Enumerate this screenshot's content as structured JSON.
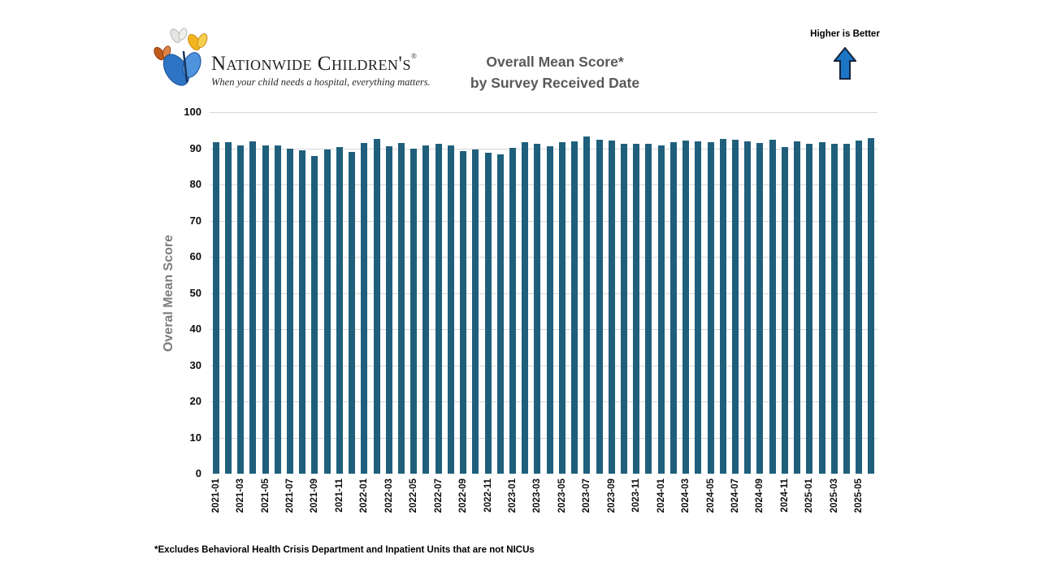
{
  "header": {
    "logo": {
      "brand": "Nationwide Children's",
      "registered_mark": "®",
      "tagline": "When your child needs a hospital, everything matters."
    },
    "title_line1": "Overall Mean Score*",
    "title_line2": "by Survey Received Date",
    "higher_is_better": "Higher is Better"
  },
  "footnote": "*Excludes Behavioral Health Crisis Department and Inpatient Units that are not NICUs",
  "colors": {
    "bar": "#1F5F7C",
    "gridline": "#D8D8D8",
    "title_gray": "#595959",
    "axis_title_gray": "#7C7C7C",
    "arrow_fill": "#1B76C5",
    "arrow_stroke": "#14243F"
  },
  "chart_data": {
    "type": "bar",
    "title": "Overall Mean Score* by Survey Received Date",
    "xlabel": "",
    "ylabel": "Overal Mean Score",
    "ylim": [
      0,
      100
    ],
    "yticks": [
      0,
      10,
      20,
      30,
      40,
      50,
      60,
      70,
      80,
      90,
      100
    ],
    "grid": true,
    "legend": "none",
    "xtick_step": 2,
    "annotation": "Higher is Better",
    "categories": [
      "2021-01",
      "2021-02",
      "2021-03",
      "2021-04",
      "2021-05",
      "2021-06",
      "2021-07",
      "2021-08",
      "2021-09",
      "2021-10",
      "2021-11",
      "2021-12",
      "2022-01",
      "2022-02",
      "2022-03",
      "2022-04",
      "2022-05",
      "2022-06",
      "2022-07",
      "2022-08",
      "2022-09",
      "2022-10",
      "2022-11",
      "2022-12",
      "2023-01",
      "2023-02",
      "2023-03",
      "2023-04",
      "2023-05",
      "2023-06",
      "2023-07",
      "2023-08",
      "2023-09",
      "2023-10",
      "2023-11",
      "2023-12",
      "2024-01",
      "2024-02",
      "2024-03",
      "2024-04",
      "2024-05",
      "2024-06",
      "2024-07",
      "2024-08",
      "2024-09",
      "2024-10",
      "2024-11",
      "2024-12",
      "2025-01",
      "2025-02",
      "2025-03",
      "2025-04",
      "2025-05",
      "2025-06"
    ],
    "values": [
      91.6,
      91.8,
      90.9,
      91.9,
      90.7,
      90.8,
      90.0,
      89.4,
      87.8,
      89.7,
      90.3,
      89.1,
      91.5,
      92.5,
      90.6,
      91.5,
      89.8,
      90.9,
      91.3,
      90.9,
      89.3,
      89.6,
      88.8,
      88.3,
      90.2,
      91.8,
      91.3,
      90.6,
      91.6,
      91.9,
      93.3,
      92.3,
      92.1,
      91.3,
      91.2,
      91.3,
      90.8,
      91.7,
      92.2,
      91.9,
      91.7,
      92.6,
      92.4,
      91.9,
      91.5,
      92.3,
      90.4,
      91.9,
      91.3,
      91.7,
      91.3,
      91.2,
      92.1,
      92.8
    ]
  }
}
